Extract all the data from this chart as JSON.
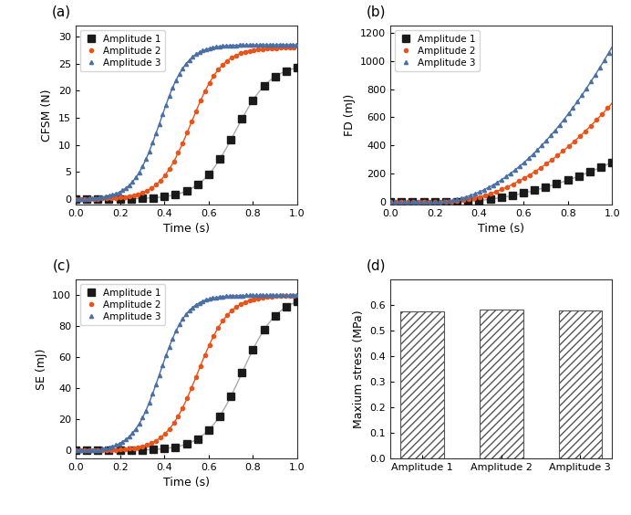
{
  "fig_width": 6.92,
  "fig_height": 5.64,
  "dpi": 100,
  "bg_color": "#ffffff",
  "colors": {
    "amp1_line": "#aaaaaa",
    "amp1_marker": "#1a1a1a",
    "amp2_line": "#e8541a",
    "amp2_marker": "#e8541a",
    "amp3_line": "#4a6fa5",
    "amp3_marker": "#4a6fa5"
  },
  "panel_a": {
    "label": "(a)",
    "xlabel": "Time (s)",
    "ylabel": "CFSM (N)",
    "xlim": [
      0.0,
      1.0
    ],
    "ylim": [
      -1,
      32
    ],
    "yticks": [
      0,
      5,
      10,
      15,
      20,
      25,
      30
    ],
    "xticks": [
      0.0,
      0.2,
      0.4,
      0.6,
      0.8,
      1.0
    ]
  },
  "panel_b": {
    "label": "(b)",
    "xlabel": "Time (s)",
    "ylabel": "FD (mJ)",
    "xlim": [
      0.0,
      1.0
    ],
    "ylim": [
      -20,
      1250
    ],
    "yticks": [
      0,
      200,
      400,
      600,
      800,
      1000,
      1200
    ],
    "xticks": [
      0.0,
      0.2,
      0.4,
      0.6,
      0.8,
      1.0
    ]
  },
  "panel_c": {
    "label": "(c)",
    "xlabel": "Time (s)",
    "ylabel": "SE (mJ)",
    "xlim": [
      0.0,
      1.0
    ],
    "ylim": [
      -5,
      110
    ],
    "yticks": [
      0,
      20,
      40,
      60,
      80,
      100
    ],
    "xticks": [
      0.0,
      0.2,
      0.4,
      0.6,
      0.8,
      1.0
    ]
  },
  "panel_d": {
    "label": "(d)",
    "ylabel": "Maxium stress (MPa)",
    "categories": [
      "Amplitude 1",
      "Amplitude 2",
      "Amplitude 3"
    ],
    "values": [
      0.575,
      0.582,
      0.58
    ],
    "ylim": [
      0.0,
      0.7
    ],
    "yticks": [
      0.0,
      0.1,
      0.2,
      0.3,
      0.4,
      0.5,
      0.6
    ],
    "bar_color": "#ffffff",
    "bar_hatch": "////",
    "bar_edgecolor": "#555555"
  },
  "legend_entries": [
    "Amplitude 1",
    "Amplitude 2",
    "Amplitude 3"
  ],
  "marker_amp1": "s",
  "marker_amp2": "o",
  "marker_amp3": "^",
  "markersize_dense": 3,
  "markersize_sparse": 6,
  "linewidth": 1.0
}
